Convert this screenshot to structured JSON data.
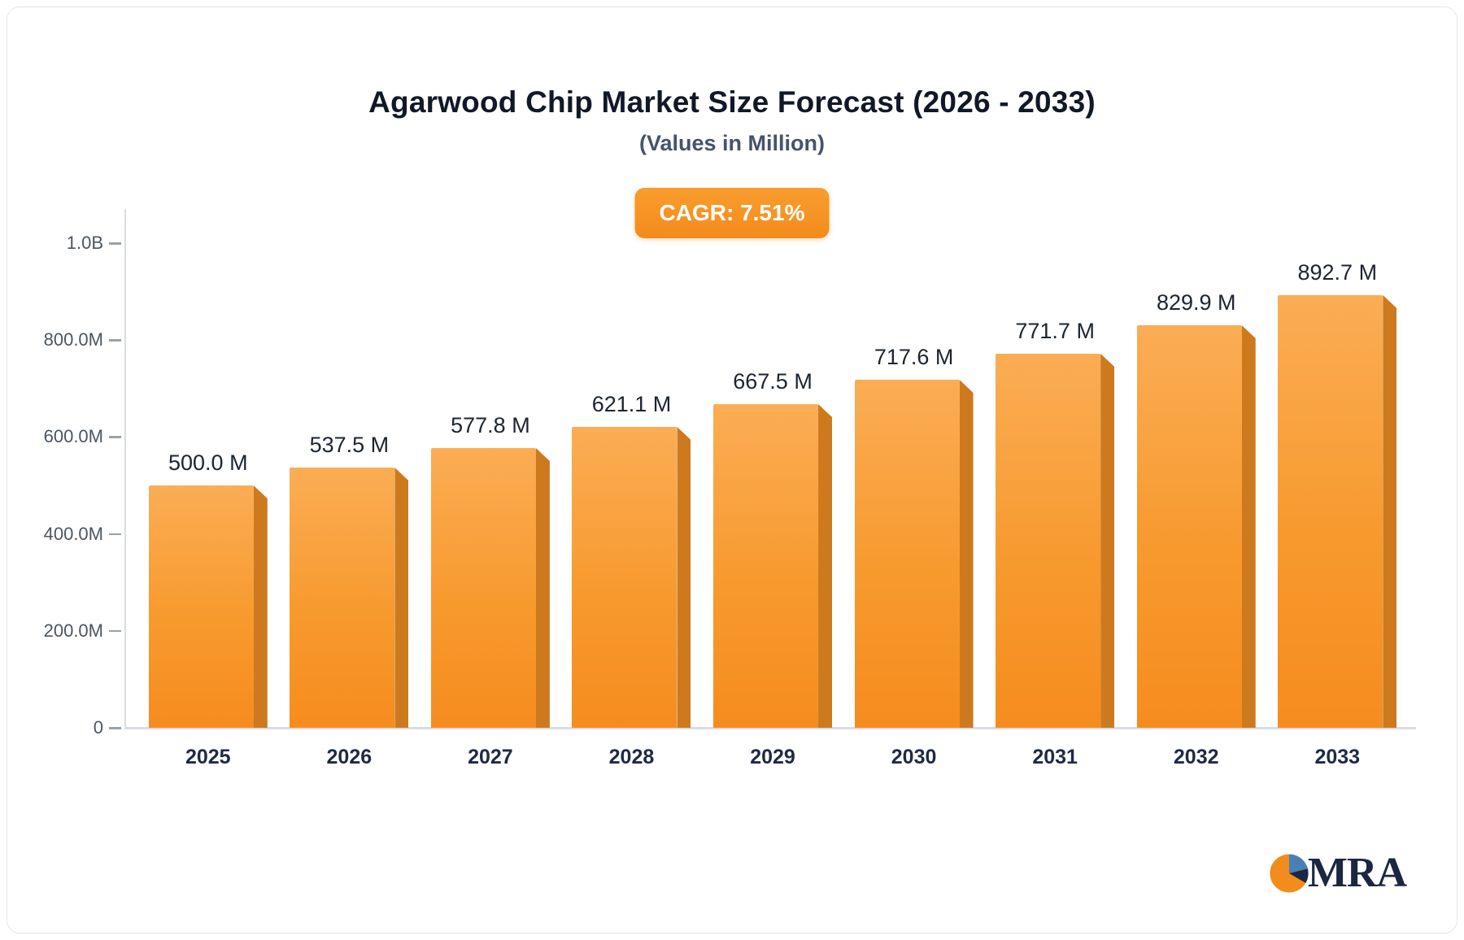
{
  "title": "Agarwood Chip Market Size Forecast (2026 - 2033)",
  "subtitle": "(Values in Million)",
  "badge": {
    "label": "CAGR: 7.51%"
  },
  "logo": {
    "text": "MRA"
  },
  "colors": {
    "bar_main": "#f68c1f",
    "bar_light": "#fbad55",
    "bar_side": "#cd7a1e",
    "badge_bg": "#f28c1c",
    "title_text": "#111827",
    "subtitle_text": "#44536e"
  },
  "chart_data": {
    "type": "bar",
    "title": "Agarwood Chip Market Size Forecast (2026 - 2033)",
    "subtitle": "(Values in Million)",
    "unit": "Million",
    "categories": [
      "2025",
      "2026",
      "2027",
      "2028",
      "2029",
      "2030",
      "2031",
      "2032",
      "2033"
    ],
    "values": [
      500.0,
      537.5,
      577.8,
      621.1,
      667.5,
      717.6,
      771.7,
      829.9,
      892.7
    ],
    "value_labels": [
      "500.0 M",
      "537.5 M",
      "577.8 M",
      "621.1 M",
      "667.5 M",
      "717.6 M",
      "771.7 M",
      "829.9 M",
      "892.7 M"
    ],
    "xlabel": "",
    "ylabel": "",
    "ylim": [
      0,
      1000
    ],
    "yticks": [
      {
        "value": 0,
        "label": "0"
      },
      {
        "value": 200,
        "label": "200.0M"
      },
      {
        "value": 400,
        "label": "400.0M"
      },
      {
        "value": 600,
        "label": "600.0M"
      },
      {
        "value": 800,
        "label": "800.0M"
      },
      {
        "value": 1000,
        "label": "1.0B"
      }
    ],
    "grid": false,
    "legend": false,
    "annotation": "CAGR: 7.51%"
  }
}
